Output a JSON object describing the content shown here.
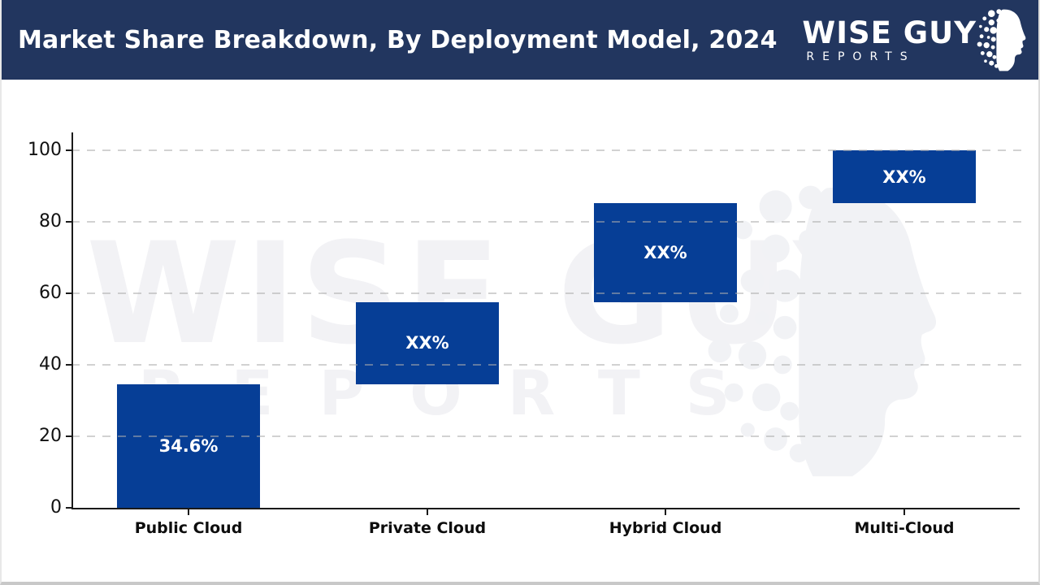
{
  "header": {
    "title": "Market Share Breakdown, By Deployment Model, 2024",
    "brand": {
      "line1": "WISE GUY",
      "line2": "REPORTS"
    }
  },
  "watermark": {
    "line1": "WISE GUY",
    "line2": "REPORTS"
  },
  "chart_data": {
    "type": "bar",
    "variant": "floating-waterfall",
    "title": "Market Share Breakdown, By Deployment Model, 2024",
    "categories": [
      "Public Cloud",
      "Private Cloud",
      "Hybrid Cloud",
      "Multi-Cloud"
    ],
    "segments": [
      {
        "category": "Public Cloud",
        "start": 0,
        "end": 34.6,
        "label": "34.6%"
      },
      {
        "category": "Private Cloud",
        "start": 34.6,
        "end": 57.5,
        "label": "XX%"
      },
      {
        "category": "Hybrid Cloud",
        "start": 57.5,
        "end": 85.2,
        "label": "XX%"
      },
      {
        "category": "Multi-Cloud",
        "start": 85.2,
        "end": 100,
        "label": "XX%"
      }
    ],
    "yticks": [
      0,
      20,
      40,
      60,
      80,
      100
    ],
    "ylim": [
      0,
      105
    ],
    "xlabel": "",
    "ylabel": "",
    "grid": {
      "axis": "y",
      "style": "dashed",
      "color": "#BCBCBC"
    },
    "legend": null,
    "bar_color": "#063E96",
    "bar_label_color": "#FFFFFF",
    "header_bg_color": "#22365F"
  }
}
